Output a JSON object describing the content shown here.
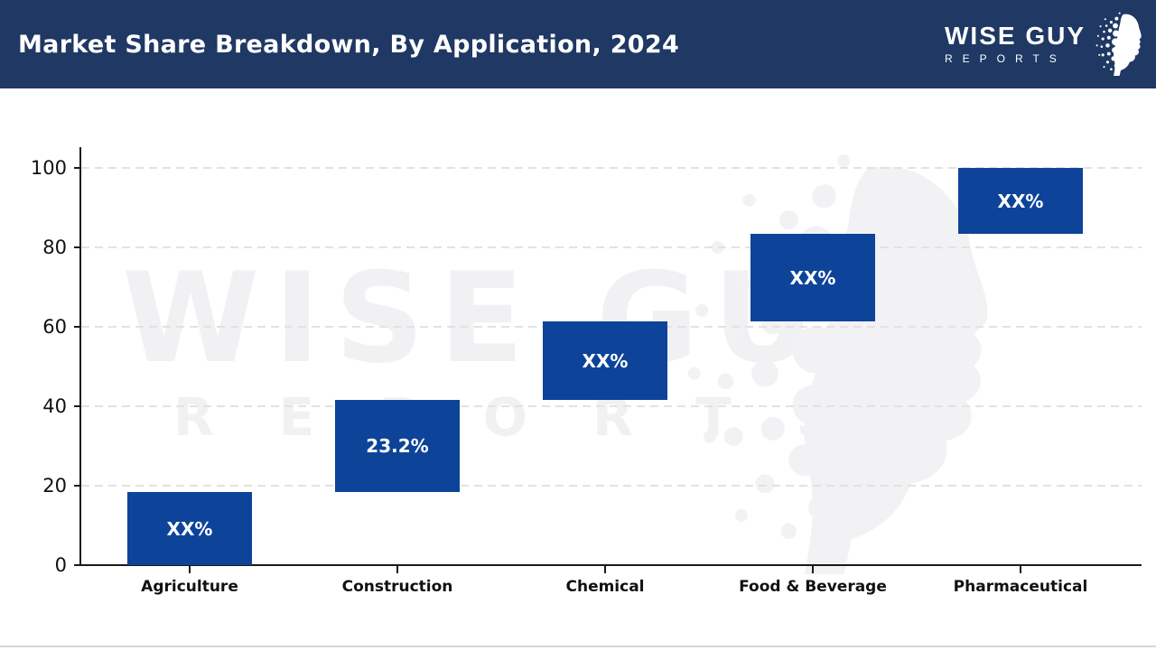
{
  "header": {
    "title": "Market Share Breakdown, By Application, 2024",
    "logo_line1": "WISE GUY",
    "logo_line2": "REPORTS"
  },
  "watermark": {
    "line1": "WISE GUY",
    "line2": "REPORTS"
  },
  "chart_data": {
    "type": "bar",
    "variant": "waterfall",
    "title": "Market Share Breakdown, By Application, 2024",
    "categories": [
      "Agriculture",
      "Construction",
      "Chemical",
      "Food & Beverage",
      "Pharmaceutical"
    ],
    "segments": [
      {
        "category": "Agriculture",
        "start": 0,
        "end": 18.3,
        "label": "XX%"
      },
      {
        "category": "Construction",
        "start": 18.3,
        "end": 41.5,
        "label": "23.2%"
      },
      {
        "category": "Chemical",
        "start": 41.5,
        "end": 61.3,
        "label": "XX%"
      },
      {
        "category": "Food & Beverage",
        "start": 61.3,
        "end": 83.3,
        "label": "XX%"
      },
      {
        "category": "Pharmaceutical",
        "start": 83.3,
        "end": 100,
        "label": "XX%"
      }
    ],
    "yticks": [
      0,
      20,
      40,
      60,
      80,
      100
    ],
    "ylim": [
      0,
      105
    ],
    "xlabel": "",
    "ylabel": "",
    "grid": "horizontal-dashed",
    "legend": false
  },
  "colors": {
    "header_bg": "#1f3864",
    "bar": "#0d4499",
    "grid": "#e2e2e2",
    "axis": "#1a1a1a",
    "watermark": "#f2f2f4",
    "bottom_line": "#d6d6d6",
    "title_text": "#ffffff"
  }
}
